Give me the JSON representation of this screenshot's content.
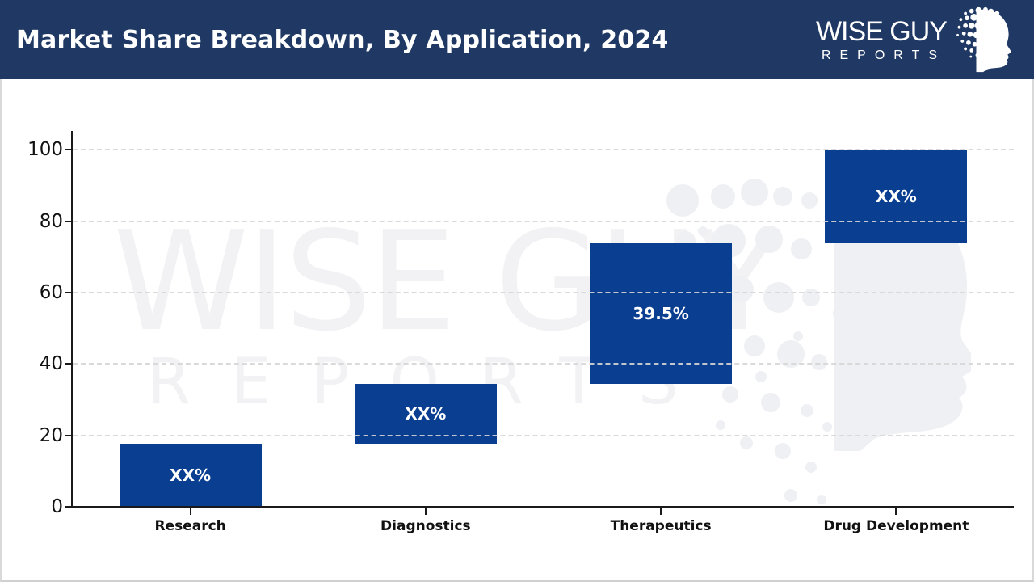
{
  "header": {
    "title": "Market Share Breakdown, By Application, 2024",
    "logo": {
      "line1": "WISE GUY",
      "line2": "REPORTS"
    }
  },
  "watermark": {
    "line1": "WISE GUY",
    "line2": "REPORTS"
  },
  "colors": {
    "header_bg": "#1f3864",
    "bar": "#0a3e91",
    "bar_label_text": "#ffffff",
    "grid": "#d6d6d6",
    "axis": "#1a1a1a",
    "watermark": "#f2f2f4",
    "border": "#d9d9d9"
  },
  "chart_data": {
    "type": "bar",
    "subtype": "floating-waterfall",
    "title": "Market Share Breakdown, By Application, 2024",
    "xlabel": "",
    "ylabel": "",
    "categories": [
      "Research",
      "Diagnostics",
      "Therapeutics",
      "Drug Development"
    ],
    "segments": [
      {
        "category": "Research",
        "start": 0,
        "end": 17.6,
        "label": "XX%"
      },
      {
        "category": "Diagnostics",
        "start": 17.6,
        "end": 34.4,
        "label": "XX%"
      },
      {
        "category": "Therapeutics",
        "start": 34.4,
        "end": 73.9,
        "label": "39.5%"
      },
      {
        "category": "Drug Development",
        "start": 73.9,
        "end": 100,
        "label": "XX%"
      }
    ],
    "yticks": [
      0,
      20,
      40,
      60,
      80,
      100
    ],
    "ylim": [
      0,
      100
    ],
    "grid": "horizontal-dashed",
    "legend": "none"
  }
}
